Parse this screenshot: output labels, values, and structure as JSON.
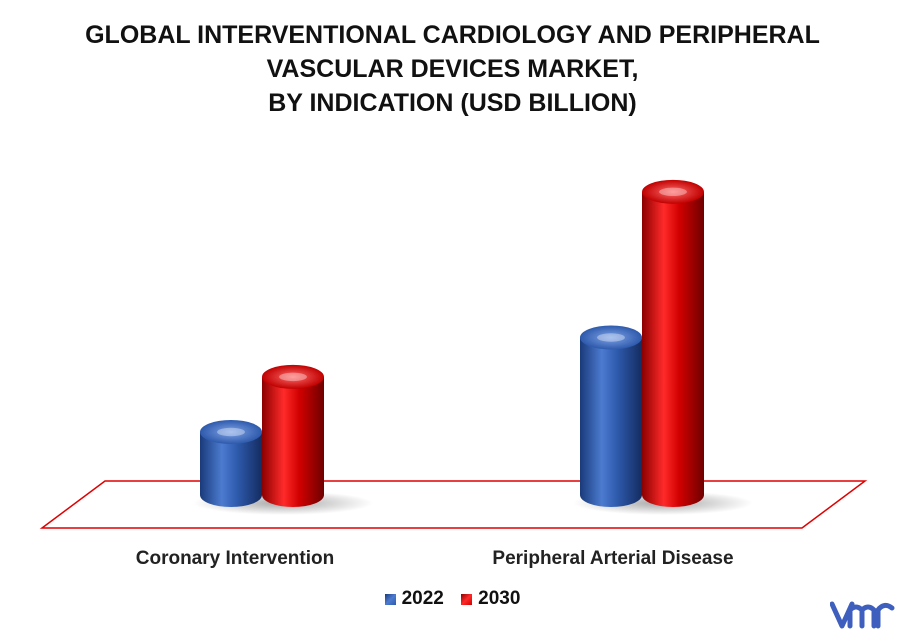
{
  "chart_data": {
    "type": "bar",
    "title": [
      "GLOBAL INTERVENTIONAL CARDIOLOGY AND PERIPHERAL",
      "VASCULAR DEVICES MARKET,",
      "BY INDICATION (USD BILLION)"
    ],
    "categories": [
      "Coronary Intervention",
      "Peripheral Arterial Disease"
    ],
    "series": [
      {
        "name": "2022",
        "values": [
          0.8,
          2.0
        ],
        "color": "#2E5AAC"
      },
      {
        "name": "2030",
        "values": [
          1.5,
          3.85
        ],
        "color": "#D10000"
      }
    ],
    "ylim": [
      0,
      4
    ],
    "grid": false,
    "legend_position": "bottom",
    "style": "3d-cylinder"
  },
  "icons": {
    "logo": "mrfr-logo"
  },
  "colors": {
    "floor_outline": "#E00000",
    "logo": "#3F5FBF"
  }
}
